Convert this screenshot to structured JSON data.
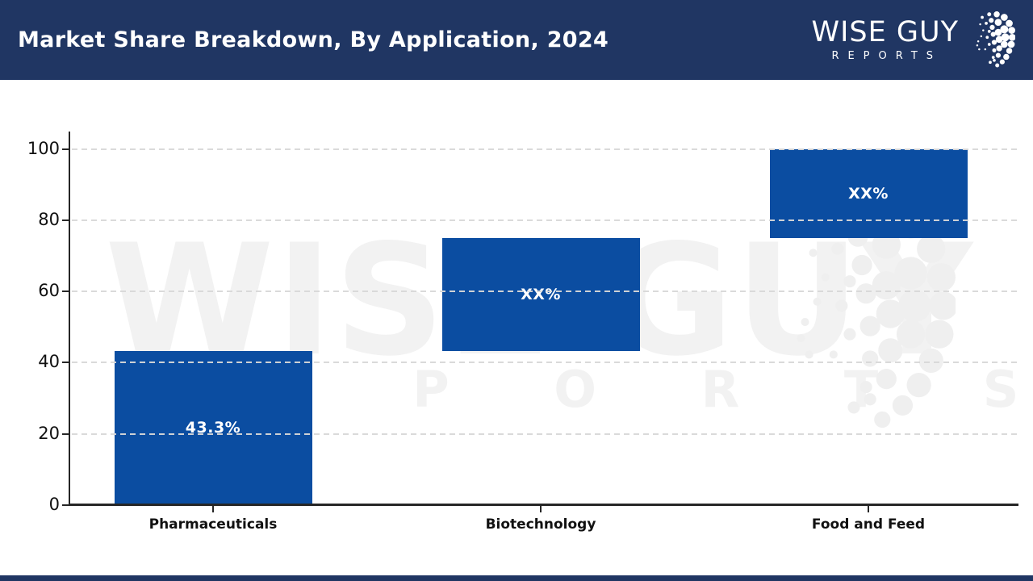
{
  "header": {
    "title": "Market Share Breakdown, By Application, 2024",
    "bg_color": "#203663",
    "logo": {
      "line1": "WISE GUY",
      "line2": "REPORTS"
    }
  },
  "watermark": {
    "line1": "WISE GUY",
    "line2": "R E P O R T S"
  },
  "footer": {
    "bg_color": "#203663"
  },
  "chart_data": {
    "type": "bar",
    "subtype": "stacked-waterfall",
    "title": "Market Share Breakdown, By Application, 2024",
    "categories": [
      "Pharmaceuticals",
      "Biotechnology",
      "Food and Feed"
    ],
    "bars": [
      {
        "category": "Pharmaceuticals",
        "start": 0,
        "end": 43.3,
        "value_label": "43.3%"
      },
      {
        "category": "Biotechnology",
        "start": 43.3,
        "end": 75,
        "value_label": "XX%"
      },
      {
        "category": "Food and Feed",
        "start": 75,
        "end": 100,
        "value_label": "XX%"
      }
    ],
    "yticks": [
      0,
      20,
      40,
      60,
      80,
      100
    ],
    "ylim": [
      0,
      105
    ],
    "bar_color": "#0b4da1",
    "bar_label_color": "#ffffff",
    "gridlines": "horizontal-dashed",
    "gridline_color": "#d8d8d8",
    "axis_color": "#262626",
    "legend": "none"
  }
}
